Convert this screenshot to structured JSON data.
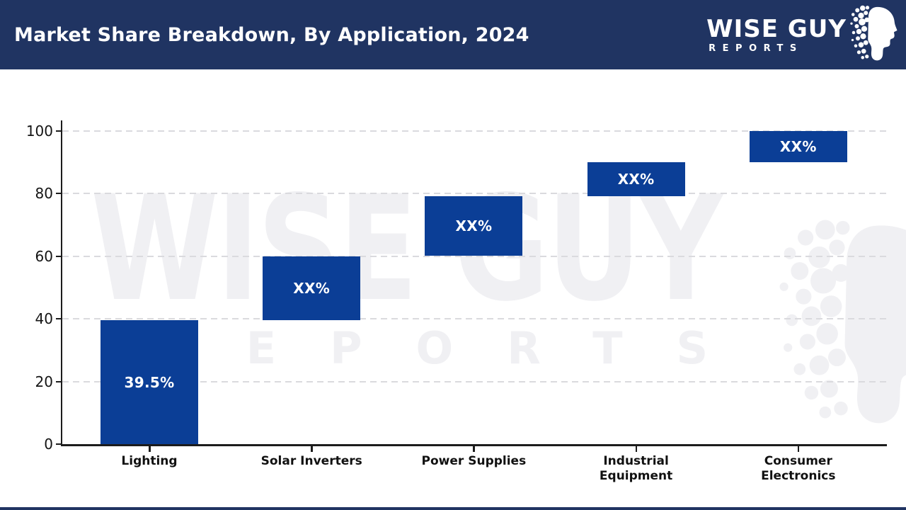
{
  "header": {
    "title": "Market Share Breakdown, By Application, 2024",
    "brand": {
      "line1": "WISE GUY",
      "line2": "REPORTS"
    }
  },
  "watermark": {
    "line1": "WISE GUY",
    "line2": "REPORTS"
  },
  "chart_data": {
    "type": "bar",
    "subtype": "waterfall",
    "title": "Market Share Breakdown, By Application, 2024",
    "categories": [
      "Lighting",
      "Solar Inverters",
      "Power Supplies",
      "Industrial\nEquipment",
      "Consumer\nElectronics"
    ],
    "segments": [
      {
        "category": "Lighting",
        "start": 0,
        "end": 39.5,
        "value": 39.5,
        "label": "39.5%"
      },
      {
        "category": "Solar Inverters",
        "start": 39.5,
        "end": 60,
        "value": 20.5,
        "label": "XX%"
      },
      {
        "category": "Power Supplies",
        "start": 60,
        "end": 79,
        "value": 19.0,
        "label": "XX%"
      },
      {
        "category": "Industrial Equipment",
        "start": 79,
        "end": 90,
        "value": 11.0,
        "label": "XX%"
      },
      {
        "category": "Consumer Electronics",
        "start": 90,
        "end": 100,
        "value": 10.0,
        "label": "XX%"
      }
    ],
    "xlabel": "",
    "ylabel": "",
    "ylim": [
      0,
      105
    ],
    "yticks": [
      0,
      20,
      40,
      60,
      80,
      100
    ],
    "grid": "horizontal-dashed",
    "legend": "none",
    "bar_color": "#0b3e96",
    "bar_label_color": "#ffffff"
  },
  "colors": {
    "header_bg": "#203462",
    "bar": "#0b3e96",
    "axis": "#1c1c1c",
    "gridline": "#dadade",
    "watermark": "#f0f0f3",
    "bar_label": "#ffffff"
  }
}
